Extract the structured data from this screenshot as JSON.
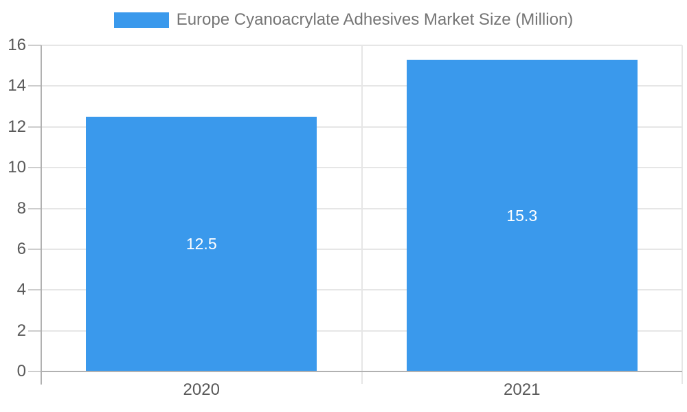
{
  "chart_data": {
    "type": "bar",
    "title": "Europe Cyanoacrylate Adhesives Market Size (Million)",
    "categories": [
      "2020",
      "2021"
    ],
    "series": [
      {
        "name": "Europe Cyanoacrylate Adhesives Market Size (Million)",
        "values": [
          12.5,
          15.3
        ]
      }
    ],
    "bar_value_labels": [
      "12.5",
      "15.3"
    ],
    "yticks": [
      "0",
      "2",
      "4",
      "6",
      "8",
      "10",
      "12",
      "14",
      "16"
    ],
    "ylim": [
      0,
      16
    ],
    "xlabel": "",
    "ylabel": "",
    "grid": true,
    "legend_position": "top-center",
    "colors": {
      "bar": "#3A99EC",
      "bar_label": "#FFFFFF",
      "title": "#757575",
      "tick_label": "#595959",
      "axis_line": "#B1B1B1",
      "grid_line": "#E6E6E6"
    }
  }
}
